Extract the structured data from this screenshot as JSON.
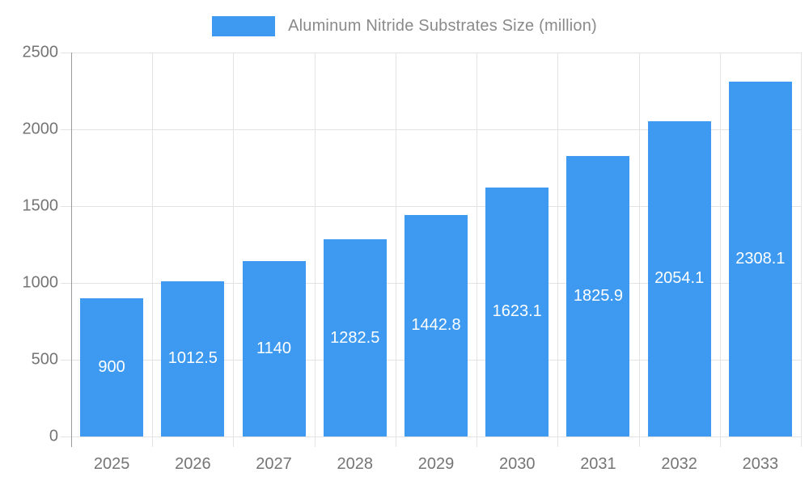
{
  "legend": {
    "label": "Aluminum Nitride Substrates Size (million)"
  },
  "chart_data": {
    "type": "bar",
    "title": "Aluminum Nitride Substrates Size (million)",
    "series_name": "Aluminum Nitride Substrates Size (million)",
    "categories": [
      "2025",
      "2026",
      "2027",
      "2028",
      "2029",
      "2030",
      "2031",
      "2032",
      "2033"
    ],
    "values": [
      900,
      1012.5,
      1140,
      1282.5,
      1442.8,
      1623.1,
      1825.9,
      2054.1,
      2308.1
    ],
    "value_labels": [
      "900",
      "1012.5",
      "1140",
      "1282.5",
      "1442.8",
      "1623.1",
      "1825.9",
      "2054.1",
      "2308.1"
    ],
    "xlabel": "",
    "ylabel": "",
    "ylim": [
      0,
      2500
    ],
    "yticks": [
      0,
      500,
      1000,
      1500,
      2000,
      2500
    ],
    "grid": true,
    "legend_position": "top",
    "colors": {
      "bar": "#3D9AF0",
      "bar_value_text": "#ffffff",
      "axis_text": "#757575",
      "legend_text": "#8a8a8a",
      "gridline": "#e3e3e3",
      "axis_line": "#9a9a9a",
      "background": "#ffffff"
    }
  }
}
